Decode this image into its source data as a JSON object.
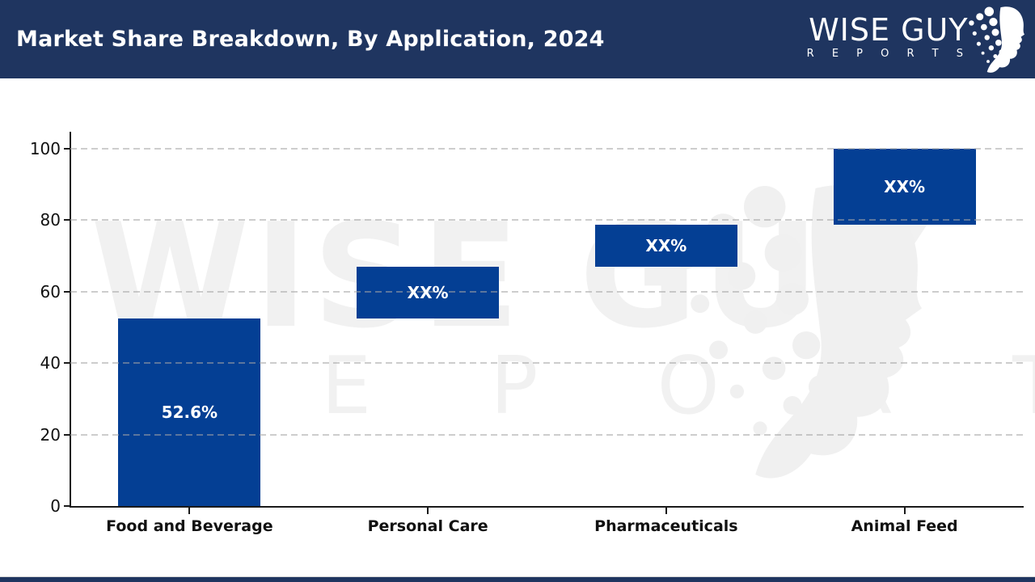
{
  "header": {
    "title": "Market Share Breakdown, By Application, 2024",
    "bg_color": "#1f3560",
    "logo": {
      "line1": "WISE GUY",
      "line2": "R E P O R T S"
    }
  },
  "watermark": {
    "line1": "WISE GUY",
    "line2": "R E P O R T S"
  },
  "chart_data": {
    "type": "bar",
    "subtype": "waterfall",
    "title": "Market Share Breakdown, By Application, 2024",
    "categories": [
      "Food and Beverage",
      "Personal Care",
      "Pharmaceuticals",
      "Animal Feed"
    ],
    "segments": [
      {
        "category": "Food and Beverage",
        "start": 0,
        "end": 52.6,
        "label": "52.6%"
      },
      {
        "category": "Personal Care",
        "start": 52.6,
        "end": 66.9,
        "label": "XX%"
      },
      {
        "category": "Pharmaceuticals",
        "start": 66.9,
        "end": 78.8,
        "label": "XX%"
      },
      {
        "category": "Animal Feed",
        "start": 78.8,
        "end": 100,
        "label": "XX%"
      }
    ],
    "y_ticks": [
      0,
      20,
      40,
      60,
      80,
      100
    ],
    "ylim": [
      0,
      104.7
    ],
    "bar_color": "#043f94",
    "grid": "horizontal-dashed",
    "legend": "none",
    "xlabel": "",
    "ylabel": ""
  }
}
